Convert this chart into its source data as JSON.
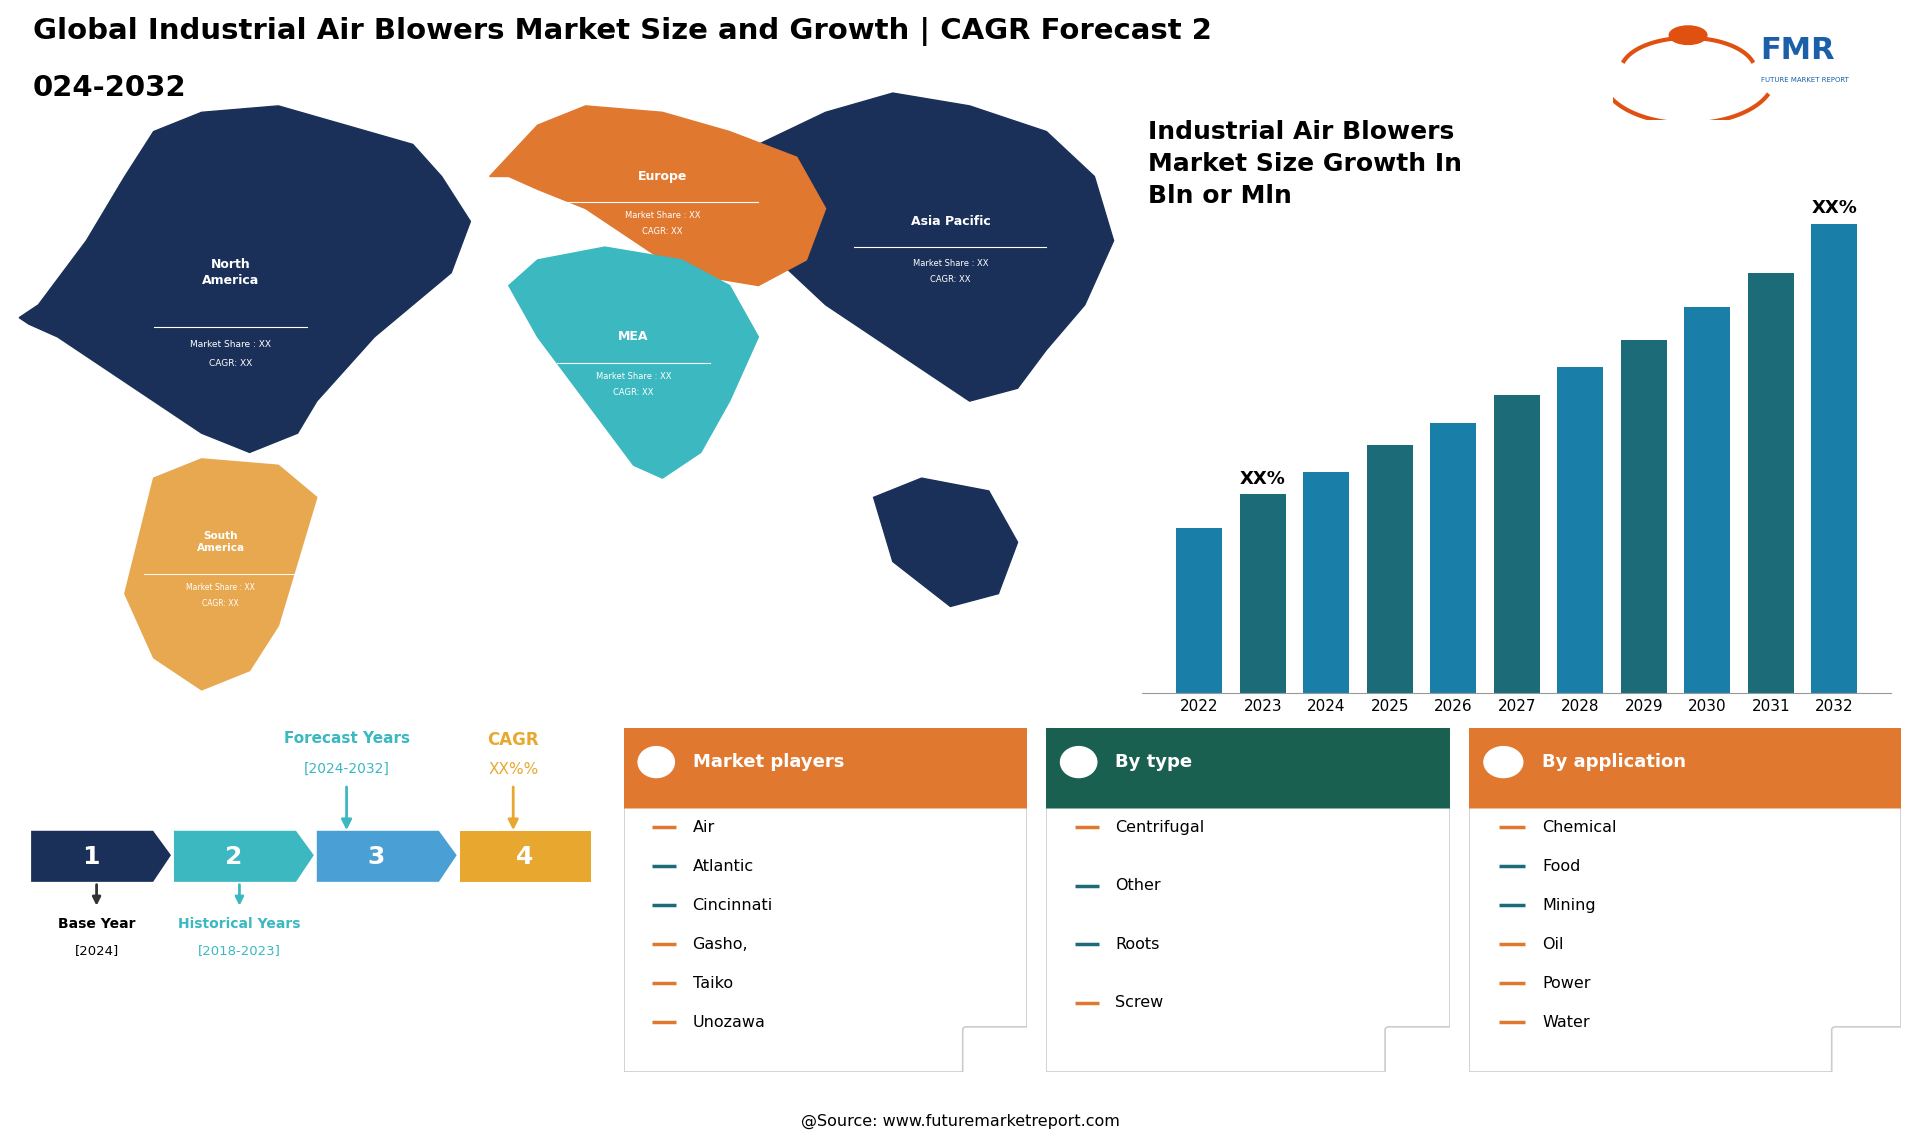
{
  "title_line1": "Global Industrial Air Blowers Market Size and Growth | CAGR Forecast 2",
  "title_line2": "024-2032",
  "bg_color": "#ffffff",
  "bar_chart_title": "Industrial Air Blowers\nMarket Size Growth In\nBln or Mln",
  "bar_years": [
    "2022",
    "2023",
    "2024",
    "2025",
    "2026",
    "2027",
    "2028",
    "2029",
    "2030",
    "2031",
    "2032"
  ],
  "bar_values": [
    3.0,
    3.6,
    4.0,
    4.5,
    4.9,
    5.4,
    5.9,
    6.4,
    7.0,
    7.6,
    8.5
  ],
  "bar_colors": [
    "#1a7fa8",
    "#1b6b78",
    "#1a7fa8",
    "#1b6b78",
    "#1a7fa8",
    "#1b6b78",
    "#1a7fa8",
    "#1b6b78",
    "#1a7fa8",
    "#1b6b78",
    "#1a7fa8"
  ],
  "bar_label_idx1": "XX%",
  "bar_label_idx10": "XX%",
  "na_color": "#1a3058",
  "sa_color": "#e8a850",
  "eu_color": "#e07830",
  "mea_color": "#3bb8c0",
  "ap_color": "#1a3058",
  "box_mp_color": "#e07830",
  "box_bt_color": "#1a6050",
  "box_ba_color": "#e07830",
  "tl_color1": "#1a3058",
  "tl_color2": "#3bb8c0",
  "tl_color3": "#4a9fd4",
  "tl_color4": "#e8a830",
  "forecast_label_color": "#3bb8c0",
  "cagr_label_color": "#e8a830",
  "market_players": [
    "Air",
    "Atlantic",
    "Cincinnati",
    "Gasho,",
    "Taiko",
    "Unozawa"
  ],
  "by_type": [
    "Centrifugal",
    "Other",
    "Roots",
    "Screw"
  ],
  "by_application": [
    "Chemical",
    "Food",
    "Mining",
    "Oil",
    "Power",
    "Water"
  ],
  "fmr_blue": "#1a5fa8",
  "fmr_orange": "#e05010",
  "source": "@Source: www.futuremarketreport.com",
  "dash_color": "#e07830",
  "dash_color2": "#1b6b78"
}
